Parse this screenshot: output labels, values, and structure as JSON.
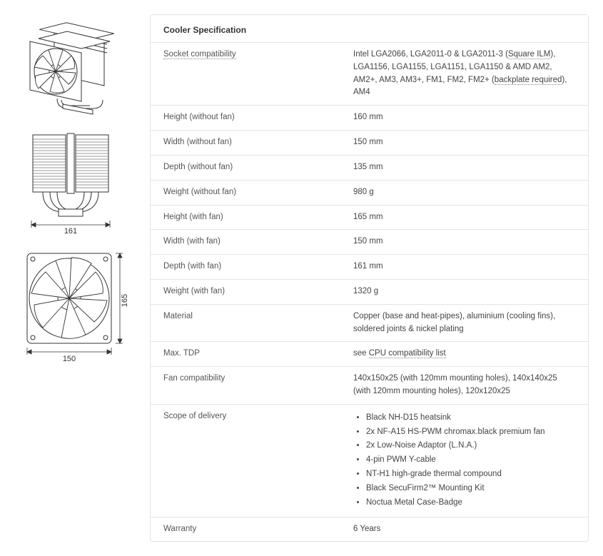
{
  "title": "Cooler Specification",
  "diagrams": {
    "width_label": "150",
    "depth_label": "161",
    "height_label": "165"
  },
  "rows": [
    {
      "label": "Socket compatibility",
      "label_dotted": true,
      "value_html": "Intel LGA2066, LGA2011-0 & LGA2011-3 (<a class='spec-link' href='#'>Square ILM</a>), LGA1156, LGA1155, LGA1151, LGA1150 & AMD AM2, AM2+, AM3, AM3+, FM1, FM2, FM2+ (<a class='spec-link' href='#'>backplate required</a>), AM4"
    },
    {
      "label": "Height (without fan)",
      "value": "160 mm"
    },
    {
      "label": "Width (without fan)",
      "value": "150 mm"
    },
    {
      "label": "Depth (without fan)",
      "value": "135 mm"
    },
    {
      "label": "Weight (without fan)",
      "value": "980 g"
    },
    {
      "label": "Height (with fan)",
      "value": "165 mm"
    },
    {
      "label": "Width (with fan)",
      "value": "150 mm"
    },
    {
      "label": "Depth (with fan)",
      "value": "161 mm"
    },
    {
      "label": "Weight (with fan)",
      "value": "1320 g"
    },
    {
      "label": "Material",
      "value": "Copper (base and heat-pipes), aluminium (cooling fins), soldered joints & nickel plating"
    },
    {
      "label": "Max. TDP",
      "value_html": "see <a class='spec-link' href='#'>CPU compatibility list</a>"
    },
    {
      "label": "Fan compatibility",
      "value": "140x150x25 (with 120mm mounting holes), 140x140x25 (with 120mm mounting holes), 120x120x25"
    },
    {
      "label": "Scope of delivery",
      "list": [
        "Black NH-D15 heatsink",
        "2x NF-A15 HS-PWM chromax.black premium fan",
        "2x Low-Noise Adaptor (L.N.A.)",
        "4-pin PWM Y-cable",
        "NT-H1 high-grade thermal compound",
        "Black SecuFirm2™ Mounting Kit",
        "Noctua Metal Case-Badge"
      ]
    },
    {
      "label": "Warranty",
      "value": "6 Years"
    }
  ],
  "colors": {
    "border": "#e4e4e4",
    "text": "#444",
    "label_text": "#555",
    "dotted": "#888",
    "background": "#ffffff"
  }
}
